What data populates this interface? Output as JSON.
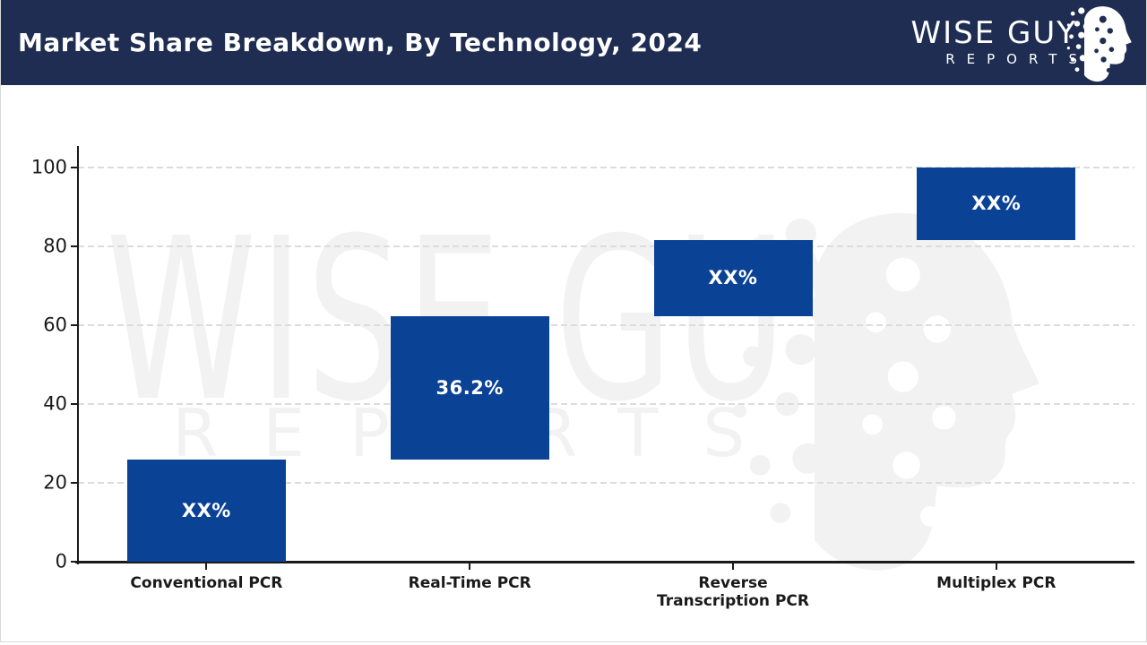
{
  "header": {
    "title": "Market Share Breakdown, By Technology, 2024",
    "logo": {
      "wordmark": "WISE GUY",
      "subtitle": "REPORTS"
    }
  },
  "watermark": {
    "wordmark": "WISE GUY",
    "subtitle": "REPORTS"
  },
  "colors": {
    "header_bg": "#1f2d52",
    "bar": "#0a4296",
    "bar_label": "#ffffff",
    "grid": "#dcdcdc",
    "axis": "#1a1a1a",
    "watermark": "#f2f2f2"
  },
  "chart_data": {
    "type": "bar",
    "subtype": "waterfall",
    "title": "Market Share Breakdown, By Technology, 2024",
    "categories": [
      "Conventional PCR",
      "Real-Time PCR",
      "Reverse\nTranscription PCR",
      "Multiplex PCR"
    ],
    "segments": [
      {
        "category": "Conventional PCR",
        "start": 0,
        "end": 26,
        "label": "XX%"
      },
      {
        "category": "Real-Time PCR",
        "start": 26,
        "end": 62.2,
        "label": "36.2%"
      },
      {
        "category": "Reverse Transcription PCR",
        "start": 62.2,
        "end": 81.7,
        "label": "XX%"
      },
      {
        "category": "Multiplex PCR",
        "start": 81.7,
        "end": 100,
        "label": "XX%"
      }
    ],
    "xlabel": "",
    "ylabel": "",
    "ylim": [
      0,
      105.5
    ],
    "yticks": [
      0,
      20,
      40,
      60,
      80,
      100
    ],
    "grid": "horizontal-dashed",
    "legend": "none"
  }
}
